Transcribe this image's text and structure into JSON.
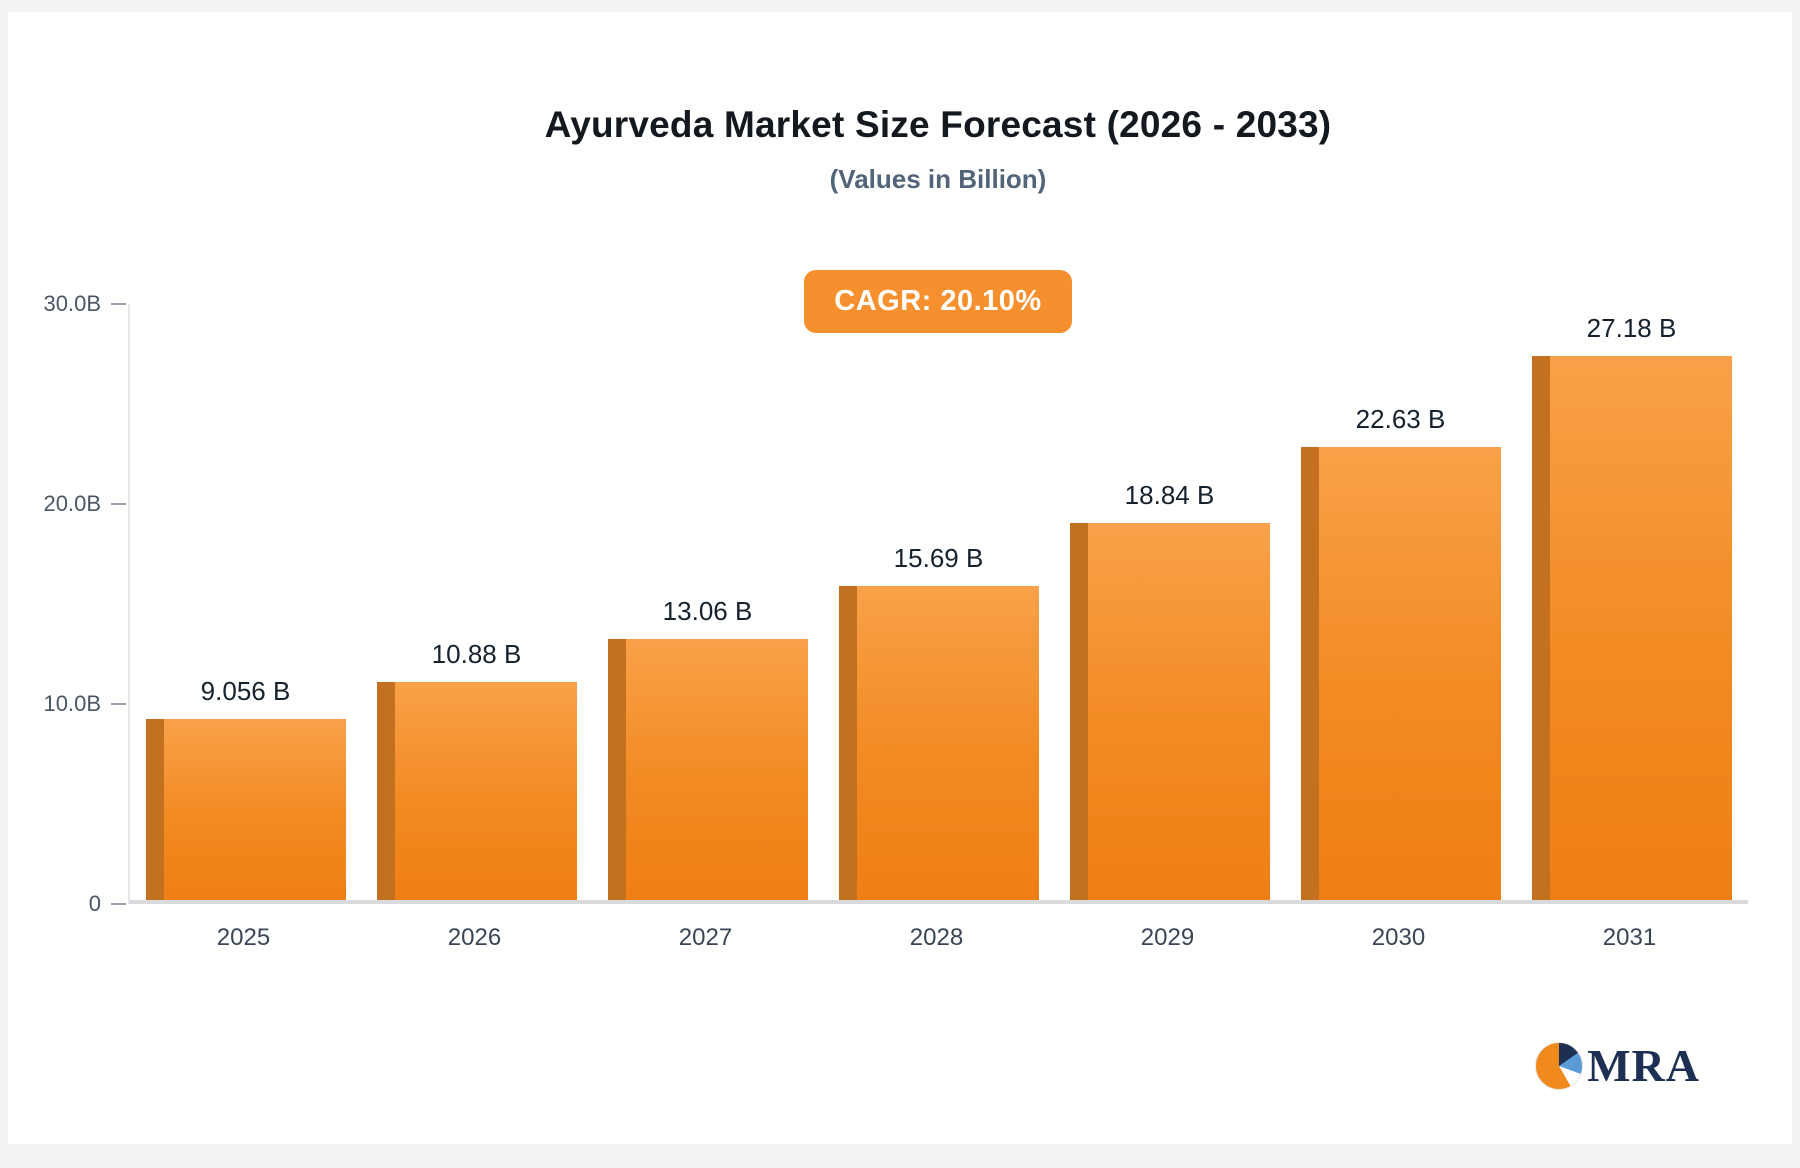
{
  "chart_data": {
    "type": "bar",
    "title": "Ayurveda Market Size Forecast (2026 - 2033)",
    "subtitle": "(Values in Billion)",
    "annotation": "CAGR: 20.10%",
    "categories": [
      "2025",
      "2026",
      "2027",
      "2028",
      "2029",
      "2030",
      "2031"
    ],
    "values": [
      9.056,
      10.88,
      13.06,
      15.69,
      18.84,
      22.63,
      27.18
    ],
    "value_labels": [
      "9.056 B",
      "10.88 B",
      "13.06 B",
      "15.69 B",
      "18.84 B",
      "22.63 B",
      "27.18 B"
    ],
    "y_ticks": [
      "30.0B",
      "20.0B",
      "10.0B",
      "0"
    ],
    "ylim": [
      0,
      30
    ],
    "grid": false,
    "legend": false,
    "bar_color": "#f28a22",
    "bar_side_color": "#c47021",
    "badge_color": "#f6902f"
  },
  "logo": {
    "text": "MRA"
  }
}
